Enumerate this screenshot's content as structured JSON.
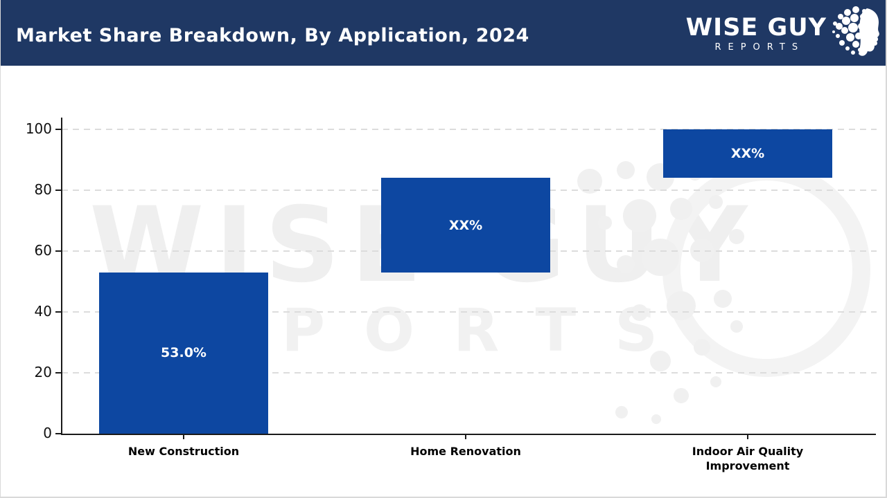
{
  "header": {
    "title": "Market Share Breakdown, By Application, 2024",
    "logo": {
      "line1": "WISE GUY",
      "line2": "REPORTS"
    }
  },
  "watermark": {
    "line1": "WISE GUY",
    "line2": "REPORTS"
  },
  "chart_data": {
    "type": "bar",
    "subtype": "floating-segment-breakdown",
    "title": "Market Share Breakdown, By Application, 2024",
    "categories": [
      "New Construction",
      "Home Renovation",
      "Indoor Air Quality Improvement"
    ],
    "segments": [
      {
        "category": "New Construction",
        "start": 0,
        "end": 53,
        "label": "53.0%"
      },
      {
        "category": "Home Renovation",
        "start": 53,
        "end": 84,
        "label": "XX%"
      },
      {
        "category": "Indoor Air Quality Improvement",
        "start": 84,
        "end": 100,
        "label": "XX%"
      }
    ],
    "yticks": [
      0,
      20,
      40,
      60,
      80,
      100
    ],
    "ylim": [
      0,
      104
    ],
    "xlabel": "",
    "ylabel": "",
    "grid": "horizontal-dashed",
    "legend": "none",
    "bar_color": "#0d47a1",
    "bar_label_color": "#ffffff"
  },
  "colors": {
    "header_bg": "#1f3864",
    "axis": "#1a1a1a",
    "grid": "#dcdcdc",
    "border": "#d9d9d9",
    "watermark": "#efefef"
  }
}
